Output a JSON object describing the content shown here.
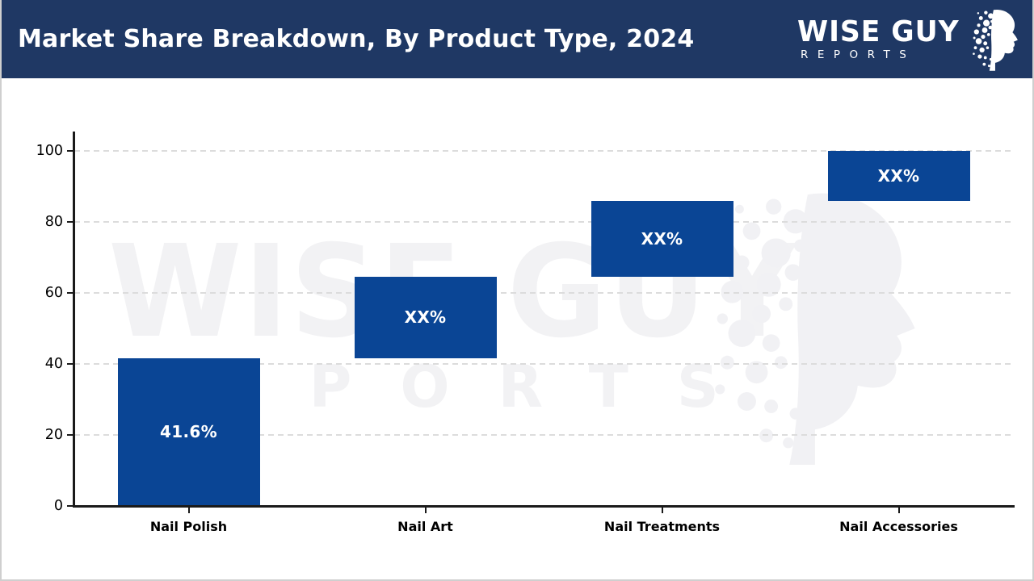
{
  "header": {
    "title": "Market Share Breakdown, By Product Type, 2024",
    "background_color": "#1f3864",
    "logo": {
      "line1": "WISE GUY",
      "line2": "REPORTS"
    }
  },
  "watermark": {
    "line1": "WISE GUY",
    "line2": "REPORTS"
  },
  "chart_data": {
    "type": "bar",
    "subtype": "waterfall",
    "title": "Market Share Breakdown, By Product Type, 2024",
    "categories": [
      "Nail Polish",
      "Nail Art",
      "Nail Treatments",
      "Nail Accessories"
    ],
    "bars": [
      {
        "category": "Nail Polish",
        "start": 0,
        "end": 41.6,
        "label": "41.6%"
      },
      {
        "category": "Nail Art",
        "start": 41.6,
        "end": 64.6,
        "label": "XX%"
      },
      {
        "category": "Nail Treatments",
        "start": 64.6,
        "end": 86.0,
        "label": "XX%"
      },
      {
        "category": "Nail Accessories",
        "start": 86.0,
        "end": 100.0,
        "label": "XX%"
      }
    ],
    "xlabel": "",
    "ylabel": "",
    "ylim": [
      0,
      105
    ],
    "yticks": [
      "0",
      "20",
      "40",
      "60",
      "80",
      "100"
    ],
    "grid": "horizontal-dashed",
    "legend": "none",
    "bar_color": "#0a4595",
    "bar_label_color": "#ffffff",
    "units": "percent"
  }
}
